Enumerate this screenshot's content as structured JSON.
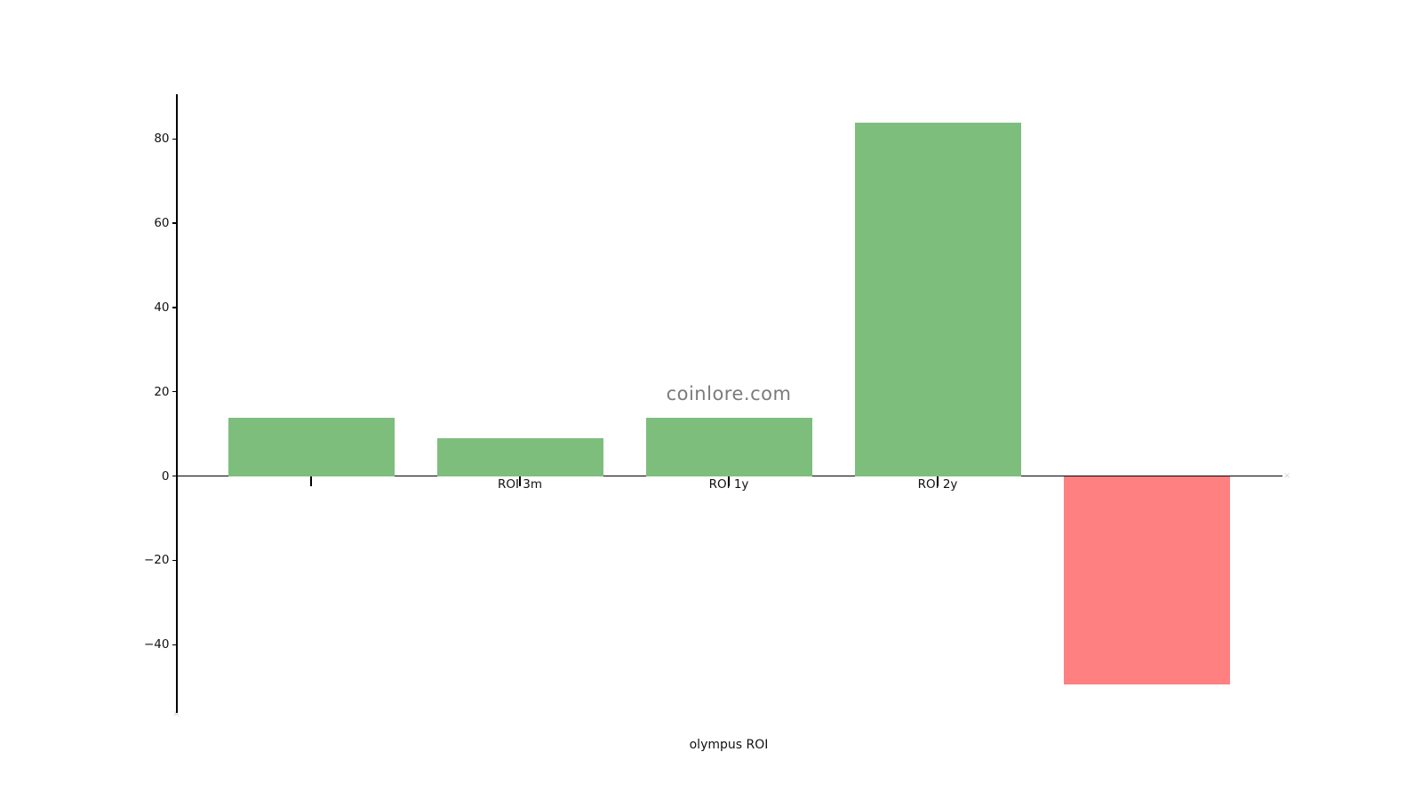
{
  "page": {
    "background": "#ffffff"
  },
  "watermark": {
    "text": "coinlore.com",
    "color": "#7b7b7b"
  },
  "chart_data": {
    "type": "bar",
    "title": "",
    "xlabel": "olympus ROI",
    "ylabel": "",
    "categories": [
      "",
      "ROI 3m",
      "ROI 1y",
      "ROI 2y",
      ""
    ],
    "values": [
      13.9,
      9,
      13.9,
      83.9,
      -49.5
    ],
    "bar_colors": [
      "#7dbe7d",
      "#7dbe7d",
      "#7dbe7d",
      "#7dbe7d",
      "#ff8080"
    ],
    "positive_color": "#7dbe7d",
    "negative_color": "#ff8080",
    "y_ticks": [
      80,
      60,
      40,
      20,
      0,
      -20,
      -40
    ],
    "y_tick_labels": [
      "80",
      "60",
      "40",
      "20",
      "0",
      "−20",
      "−40"
    ],
    "ylim": [
      -56.2,
      90.6
    ],
    "x_ticks_with_marks": 4,
    "grid": false,
    "legend": null,
    "axis_color": "#000000",
    "tick_label_color": "#111111",
    "axis_end_artifact": "×"
  }
}
